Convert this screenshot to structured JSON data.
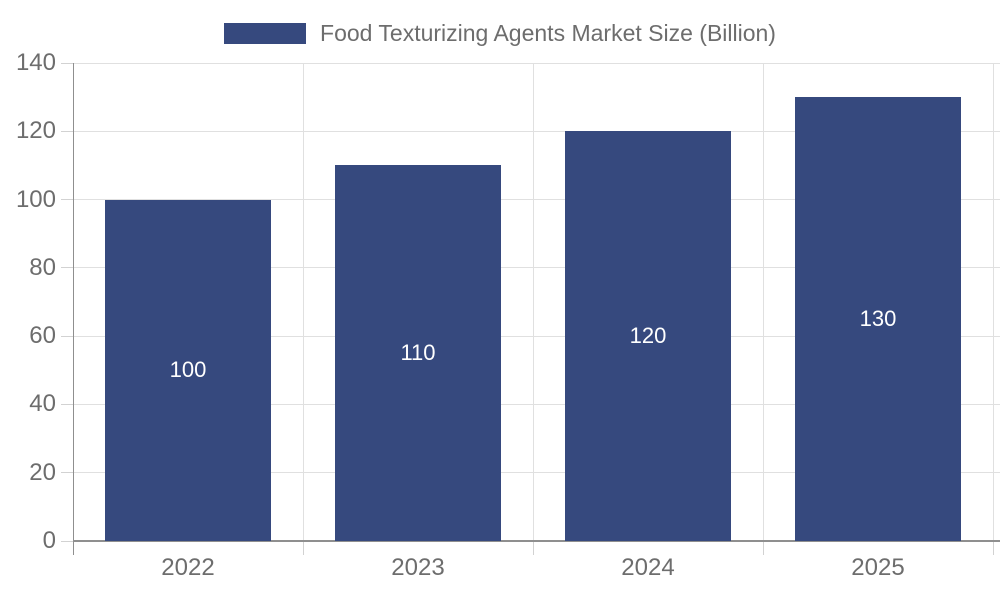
{
  "chart_data": {
    "type": "bar",
    "title": "Food Texturizing Agents Market Size (Billion)",
    "series_name": "Food Texturizing Agents Market Size (Billion)",
    "categories": [
      "2022",
      "2023",
      "2024",
      "2025"
    ],
    "values": [
      100,
      110,
      120,
      130
    ],
    "data_labels": [
      "100",
      "110",
      "120",
      "130"
    ],
    "data_label_position": "inside-center",
    "xlabel": "",
    "ylabel": "",
    "ylim": [
      0,
      140
    ],
    "yticks": [
      0,
      20,
      40,
      60,
      80,
      100,
      120,
      140
    ],
    "grid": true,
    "legend_position": "top-center",
    "bar_color": "#36497E",
    "bar_label_color": "#ffffff",
    "grid_color": "#e0e0e0",
    "tick_color": "#d2d2d2",
    "axis_color": "#8f8f8f",
    "text_color": "#6d6d6d",
    "background_color": "#ffffff"
  }
}
